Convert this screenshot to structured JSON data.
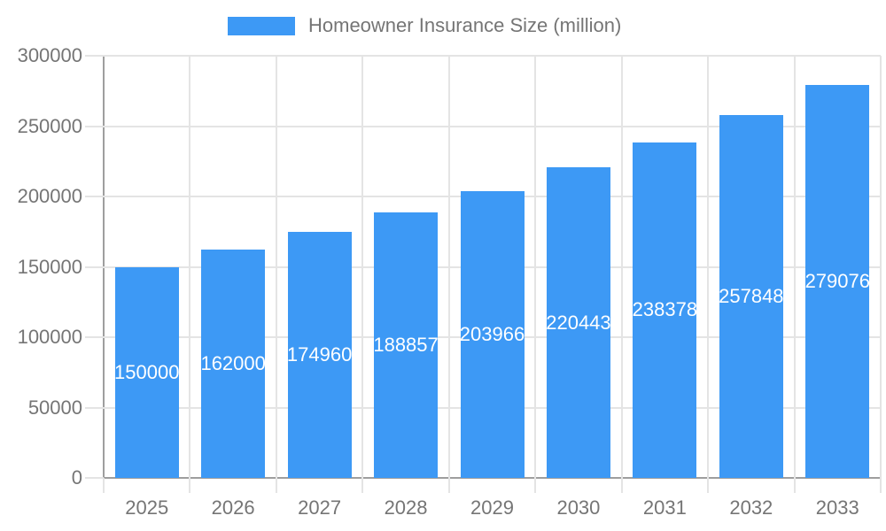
{
  "chart_data": {
    "type": "bar",
    "title": "",
    "legend": "Homeowner Insurance Size (million)",
    "legend_position": "top",
    "categories": [
      "2025",
      "2026",
      "2027",
      "2028",
      "2029",
      "2030",
      "2031",
      "2032",
      "2033"
    ],
    "series": [
      {
        "name": "Homeowner Insurance Size (million)",
        "values": [
          150000,
          162000,
          174960,
          188857,
          203966,
          220443,
          238378,
          257848,
          279076
        ]
      }
    ],
    "value_labels": [
      "150000",
      "162000",
      "174960",
      "188857",
      "203966",
      "220443",
      "238378",
      "257848",
      "279076"
    ],
    "xlabel": "",
    "ylabel": "",
    "ylim": [
      0,
      300000
    ],
    "yticks": [
      0,
      50000,
      100000,
      150000,
      200000,
      250000,
      300000
    ],
    "ytick_labels": [
      "0",
      "50000",
      "100000",
      "150000",
      "200000",
      "250000",
      "300000"
    ],
    "grid": true,
    "colors": {
      "bar": "#3D99F5",
      "value_label": "#FFFFFF",
      "axis_text": "#757575",
      "axis_line": "#9E9E9E",
      "gridline": "#E4E4E4",
      "background": "#FFFFFF"
    }
  }
}
